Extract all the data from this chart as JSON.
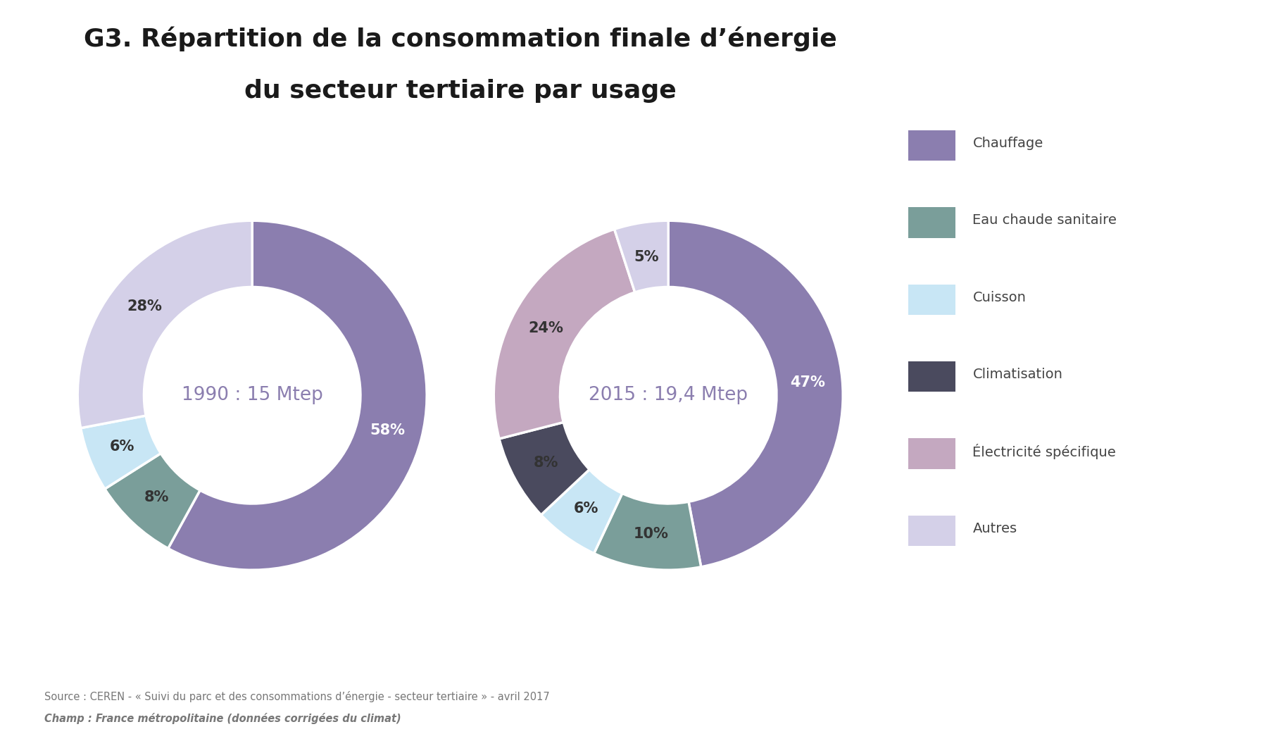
{
  "title_line1": "G3. Répartition de la consommation finale d’énergie",
  "title_line2": "du secteur tertiaire par usage",
  "chart1_label": "1990 : 15 Mtep",
  "chart2_label": "2015 : 19,4 Mtep",
  "categories": [
    "Chauffage",
    "Eau chaude sanitaire",
    "Cuisson",
    "Climatisation",
    "Électricité spécifique",
    "Autres"
  ],
  "colors_all": [
    "#8b7eaf",
    "#7a9e9a",
    "#c8e6f5",
    "#4a4a5e",
    "#c4a8c0",
    "#d4d0e8"
  ],
  "values_1990": [
    58,
    8,
    6,
    28
  ],
  "color_indices_1990": [
    0,
    1,
    2,
    5
  ],
  "labels_1990": [
    "58%",
    "8%",
    "6%",
    "28%"
  ],
  "label_white_1990": [
    true,
    false,
    false,
    false
  ],
  "values_2015": [
    47,
    10,
    6,
    8,
    24,
    5
  ],
  "color_indices_2015": [
    0,
    1,
    2,
    3,
    4,
    5
  ],
  "labels_2015": [
    "47%",
    "10%",
    "6%",
    "8%",
    "24%",
    "5%"
  ],
  "label_white_2015": [
    true,
    false,
    false,
    false,
    false,
    false
  ],
  "source_text": "Source : CEREN - « Suivi du parc et des consommations d’énergie - secteur tertiaire » - avril 2017",
  "champ_text": "Champ : France métropolitaine (données corrigées du climat)",
  "bg_color": "#ffffff",
  "center_text_color": "#8b7eaf",
  "label_dark_color": "#333333",
  "title_color": "#1a1a1a"
}
